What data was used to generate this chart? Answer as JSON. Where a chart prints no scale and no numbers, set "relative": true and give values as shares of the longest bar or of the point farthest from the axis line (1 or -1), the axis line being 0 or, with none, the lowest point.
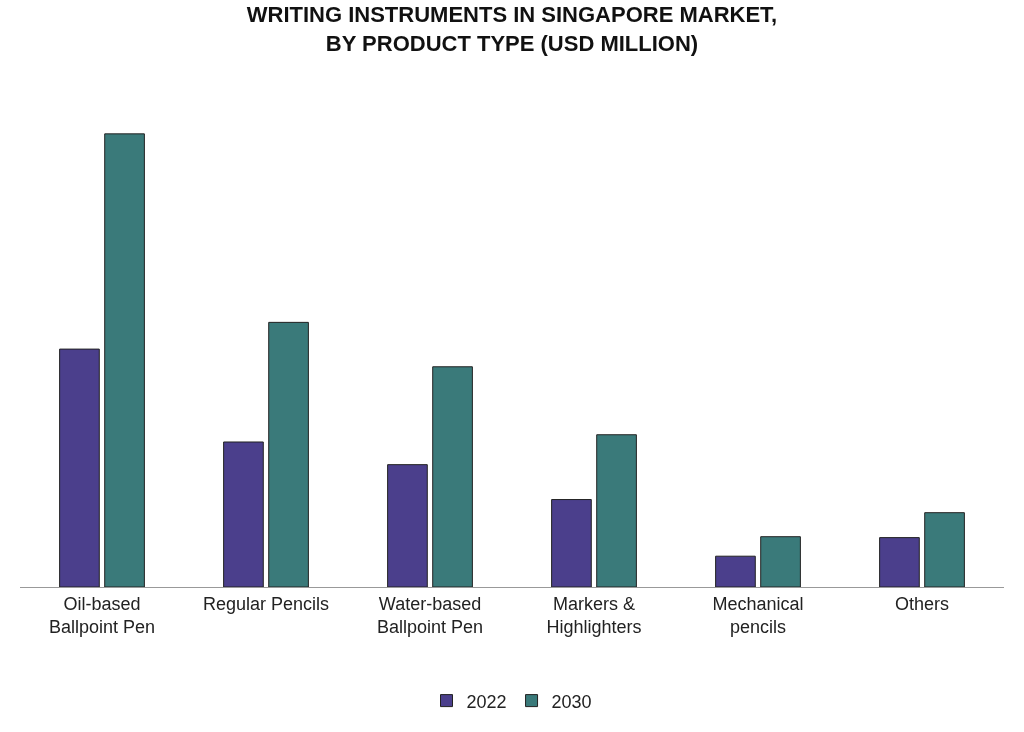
{
  "chart_data": {
    "type": "bar",
    "title": "WRITING INSTRUMENTS IN SINGAPORE MARKET, BY PRODUCT TYPE (USD MILLION)",
    "relative": true,
    "legend": "bottom",
    "categories": [
      "Oil-based Ballpoint Pen",
      "Regular Pencils",
      "Water-based Ballpoint Pen",
      "Markers & Highlighters",
      "Mechanical pencils",
      "Others"
    ],
    "series": [
      {
        "name": "2022",
        "color": "#4b3f8c",
        "values": [
          0.525,
          0.32,
          0.27,
          0.193,
          0.068,
          0.109
        ]
      },
      {
        "name": "2030",
        "color": "#3a7a7a",
        "values": [
          1,
          0.584,
          0.486,
          0.336,
          0.111,
          0.164
        ]
      }
    ]
  }
}
